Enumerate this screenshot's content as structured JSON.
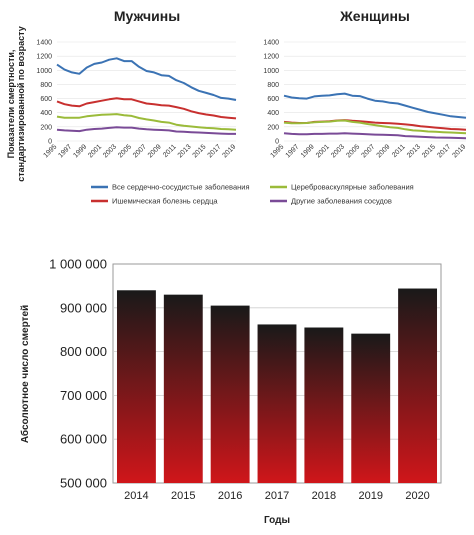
{
  "chart_data": [
    {
      "type": "line",
      "title": "Мужчины",
      "ylabel": "Показатели смертности, стандартизированной по возрасту",
      "ylim": [
        0,
        1400
      ],
      "yticks": [
        0,
        200,
        400,
        600,
        800,
        1000,
        1200,
        1400
      ],
      "x": [
        1995,
        1996,
        1997,
        1998,
        1999,
        2000,
        2001,
        2002,
        2003,
        2004,
        2005,
        2006,
        2007,
        2008,
        2009,
        2010,
        2011,
        2012,
        2013,
        2014,
        2015,
        2016,
        2017,
        2018,
        2019
      ],
      "xticks": [
        "1995",
        "1997",
        "1999",
        "2001",
        "2003",
        "2005",
        "2007",
        "2009",
        "2011",
        "2013",
        "2015",
        "2017",
        "2019"
      ],
      "series": [
        {
          "name": "Все сердечно-сосудистые заболевания",
          "color": "#3b73b4",
          "values": [
            1080,
            1010,
            970,
            950,
            1040,
            1090,
            1110,
            1150,
            1170,
            1130,
            1130,
            1050,
            990,
            970,
            930,
            920,
            860,
            820,
            760,
            710,
            680,
            650,
            610,
            600,
            580
          ]
        },
        {
          "name": "Ишемическая болезнь сердца",
          "color": "#c8302f",
          "values": [
            560,
            520,
            500,
            490,
            530,
            550,
            570,
            590,
            605,
            590,
            590,
            560,
            530,
            520,
            505,
            500,
            480,
            455,
            420,
            395,
            375,
            360,
            340,
            330,
            320
          ]
        },
        {
          "name": "Цереброваскулярные заболевания",
          "color": "#9bbb3a",
          "values": [
            345,
            330,
            330,
            330,
            350,
            360,
            370,
            375,
            380,
            365,
            355,
            325,
            305,
            290,
            270,
            260,
            230,
            215,
            205,
            195,
            185,
            180,
            170,
            165,
            160
          ]
        },
        {
          "name": "Другие заболевания сосудов",
          "color": "#7a4b97",
          "values": [
            160,
            150,
            145,
            140,
            160,
            170,
            175,
            185,
            195,
            190,
            190,
            175,
            165,
            160,
            155,
            150,
            135,
            130,
            125,
            120,
            115,
            110,
            105,
            100,
            100
          ]
        }
      ]
    },
    {
      "type": "line",
      "title": "Женщины",
      "ylim": [
        0,
        1400
      ],
      "yticks": [
        0,
        200,
        400,
        600,
        800,
        1000,
        1200,
        1400
      ],
      "x": [
        1995,
        1996,
        1997,
        1998,
        1999,
        2000,
        2001,
        2002,
        2003,
        2004,
        2005,
        2006,
        2007,
        2008,
        2009,
        2010,
        2011,
        2012,
        2013,
        2014,
        2015,
        2016,
        2017,
        2018,
        2019
      ],
      "xticks": [
        "1995",
        "1997",
        "1999",
        "2001",
        "2003",
        "2005",
        "2007",
        "2009",
        "2011",
        "2013",
        "2015",
        "2017",
        "2019"
      ],
      "series": [
        {
          "name": "Все сердечно-сосудистые заболевания",
          "color": "#3b73b4",
          "values": [
            640,
            615,
            605,
            600,
            630,
            640,
            645,
            660,
            670,
            640,
            635,
            600,
            570,
            560,
            540,
            530,
            500,
            470,
            440,
            410,
            390,
            370,
            350,
            340,
            330
          ]
        },
        {
          "name": "Ишемическая болезнь сердца",
          "color": "#c8302f",
          "values": [
            270,
            260,
            255,
            255,
            270,
            275,
            280,
            290,
            295,
            285,
            280,
            270,
            260,
            255,
            250,
            245,
            235,
            225,
            210,
            200,
            190,
            180,
            170,
            165,
            160
          ]
        },
        {
          "name": "Цереброваскулярные заболевания",
          "color": "#9bbb3a",
          "values": [
            260,
            250,
            250,
            255,
            265,
            270,
            275,
            285,
            290,
            270,
            260,
            240,
            225,
            210,
            195,
            185,
            165,
            150,
            145,
            135,
            130,
            125,
            120,
            115,
            110
          ]
        },
        {
          "name": "Другие заболевания сосудов",
          "color": "#7a4b97",
          "values": [
            110,
            100,
            95,
            95,
            100,
            100,
            105,
            105,
            110,
            105,
            100,
            95,
            90,
            88,
            85,
            80,
            70,
            65,
            60,
            55,
            50,
            48,
            45,
            42,
            40
          ]
        }
      ]
    },
    {
      "type": "bar",
      "categories": [
        "2014",
        "2015",
        "2016",
        "2017",
        "2018",
        "2019",
        "2020"
      ],
      "values": [
        940000,
        930000,
        905000,
        862000,
        855000,
        841000,
        944000
      ],
      "xlabel": "Годы",
      "ylabel": "Абсолютное число смертей",
      "ylim": [
        500000,
        1000000
      ],
      "yticks": [
        "500 000",
        "600 000",
        "700 000",
        "800 000",
        "900 000",
        "1 000 000"
      ],
      "bar_gradient": [
        "#191919",
        "#d0161a"
      ]
    }
  ],
  "legend": [
    {
      "label": "Все сердечно-сосудистые заболевания",
      "color": "#3b73b4"
    },
    {
      "label": "Цереброваскулярные заболевания",
      "color": "#9bbb3a"
    },
    {
      "label": "Ишемическая болезнь сердца",
      "color": "#c8302f"
    },
    {
      "label": "Другие заболевания сосудов",
      "color": "#7a4b97"
    }
  ]
}
